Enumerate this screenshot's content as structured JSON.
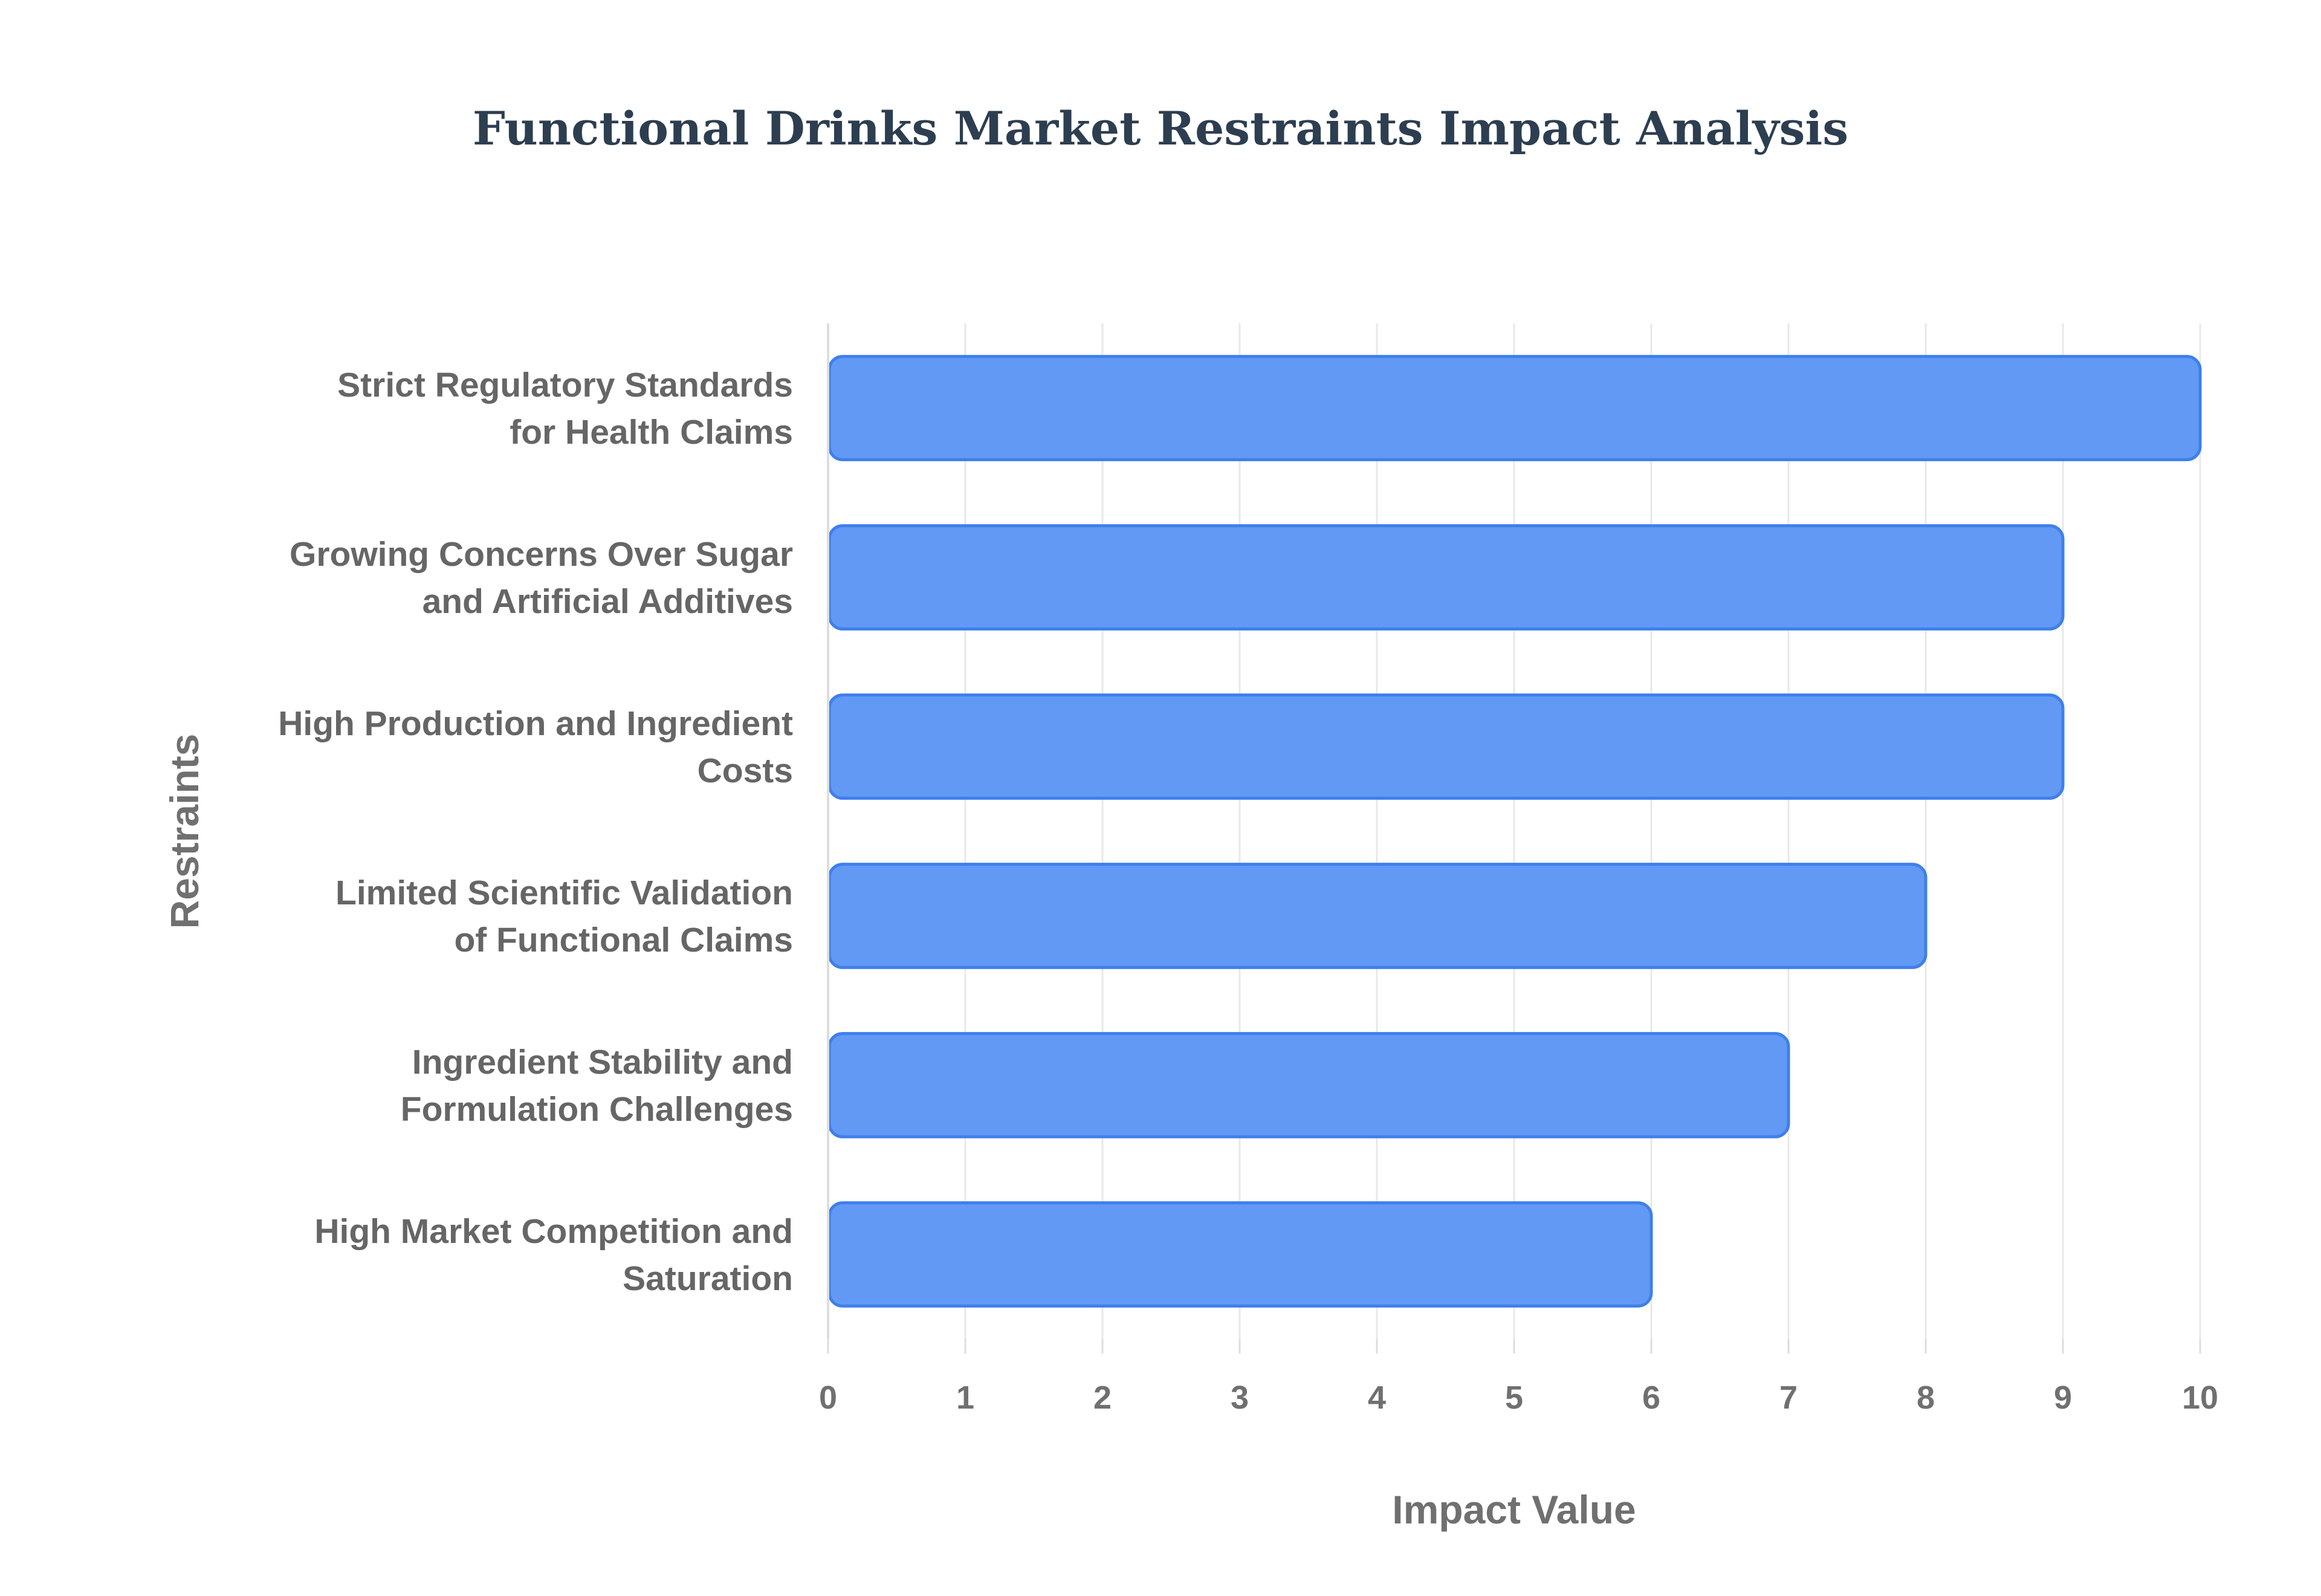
{
  "chart_data": {
    "type": "bar",
    "orientation": "horizontal",
    "title": "Functional Drinks Market Restraints Impact Analysis",
    "xlabel": "Impact Value",
    "ylabel": "Restraints",
    "xlim": [
      0,
      10
    ],
    "x_ticks": [
      "0",
      "1",
      "2",
      "3",
      "4",
      "5",
      "6",
      "7",
      "8",
      "9",
      "10"
    ],
    "grid": true,
    "legend": "none",
    "bar_color": "#6199f5",
    "bar_edge_color": "#3f7fec",
    "categories": [
      [
        "Strict Regulatory Standards",
        "for Health Claims"
      ],
      [
        "Growing Concerns Over Sugar",
        "and Artificial Additives"
      ],
      [
        "High Production and Ingredient",
        "Costs"
      ],
      [
        "Limited Scientific Validation",
        "of Functional Claims"
      ],
      [
        "Ingredient Stability and",
        "Formulation Challenges"
      ],
      [
        "High Market Competition and",
        "Saturation"
      ]
    ],
    "values": [
      10,
      9,
      9,
      8,
      7,
      6
    ]
  }
}
